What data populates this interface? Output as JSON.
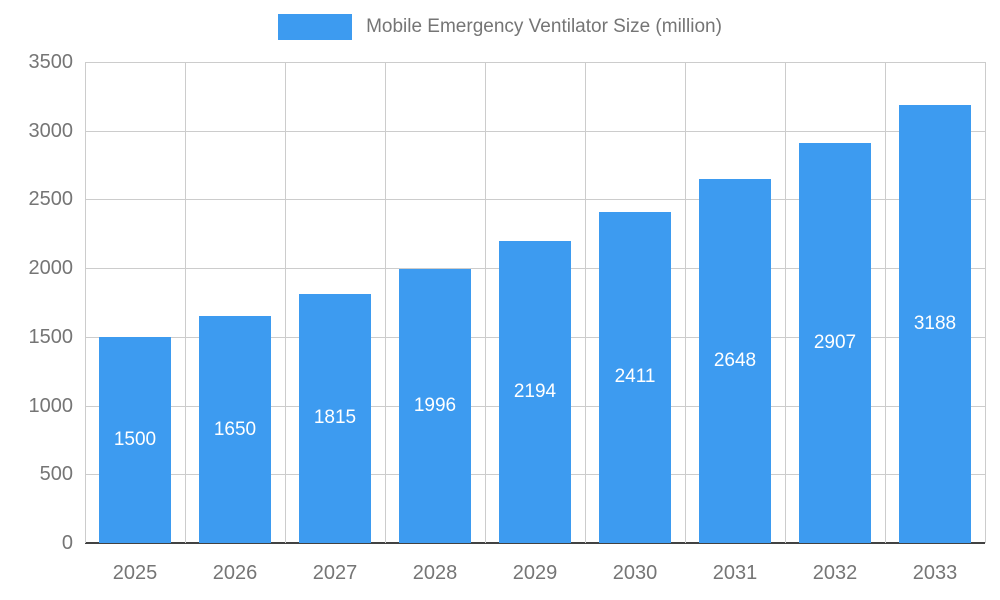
{
  "legend": {
    "label": "Mobile Emergency Ventilator Size (million)"
  },
  "colors": {
    "bar": "#3d9bf0",
    "grid": "#cccccc",
    "axis": "#424242",
    "axis_text": "#757575",
    "value_label": "#ffffff"
  },
  "chart_data": {
    "type": "bar",
    "title": "Mobile Emergency Ventilator Size (million)",
    "categories": [
      "2025",
      "2026",
      "2027",
      "2028",
      "2029",
      "2030",
      "2031",
      "2032",
      "2033"
    ],
    "values": [
      1500,
      1650,
      1815,
      1996,
      2194,
      2411,
      2648,
      2907,
      3188
    ],
    "xlabel": "",
    "ylabel": "",
    "ylim": [
      0,
      3500
    ],
    "ytick_step": 500,
    "yticks": [
      0,
      500,
      1000,
      1500,
      2000,
      2500,
      3000,
      3500
    ],
    "grid": true,
    "legend_position": "top",
    "value_labels": "inside-center"
  }
}
